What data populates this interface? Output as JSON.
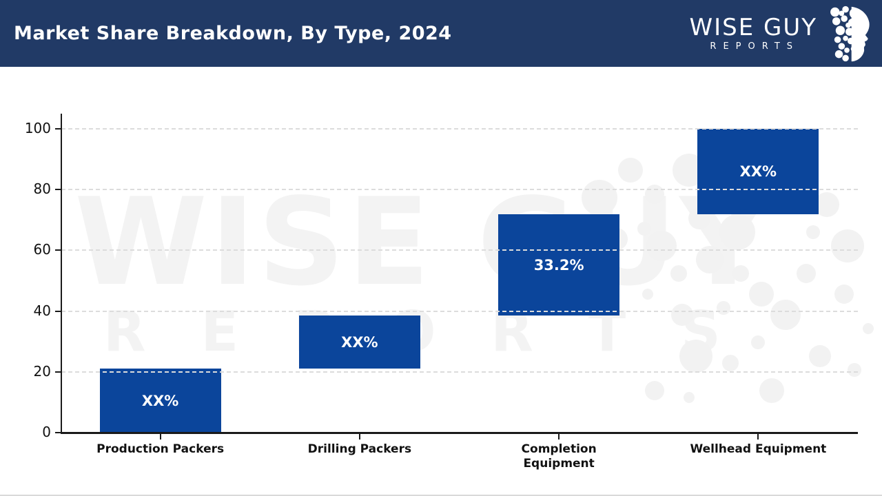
{
  "header": {
    "title": "Market Share Breakdown, By Type, 2024",
    "logo": {
      "line1": "WISE GUY",
      "line2": "REPORTS"
    }
  },
  "watermark": {
    "line1": "WISE GUY",
    "line2": "R E P O R T S"
  },
  "chart_data": {
    "type": "bar",
    "subtype": "waterfall",
    "title": "Market Share Breakdown, By Type, 2024",
    "categories": [
      "Production Packers",
      "Drilling Packers",
      "Completion\nEquipment",
      "Wellhead Equipment"
    ],
    "segments": [
      {
        "label": "Production Packers",
        "start": 0,
        "end": 21,
        "height": 21,
        "value_label": "XX%"
      },
      {
        "label": "Drilling Packers",
        "start": 21,
        "end": 38.5,
        "height": 17.5,
        "value_label": "XX%"
      },
      {
        "label": "Completion Equipment",
        "start": 38.6,
        "end": 71.8,
        "height": 33.2,
        "value_label": "33.2%"
      },
      {
        "label": "Wellhead Equipment",
        "start": 71.8,
        "end": 100,
        "height": 28.2,
        "value_label": "XX%"
      }
    ],
    "yticks": [
      0,
      20,
      40,
      60,
      80,
      100
    ],
    "ylim": [
      0,
      105
    ],
    "xlabel": "",
    "ylabel": "",
    "grid": "dashed-horizontal",
    "legend": "none",
    "bar_color": "#0b459b",
    "value_label_color": "#ffffff"
  },
  "colors": {
    "header_bg": "#213a66",
    "bar_blue": "#0b459b",
    "axis": "#1a1a1a",
    "grid": "#dcdcdc",
    "watermark": "#f3f3f3"
  }
}
